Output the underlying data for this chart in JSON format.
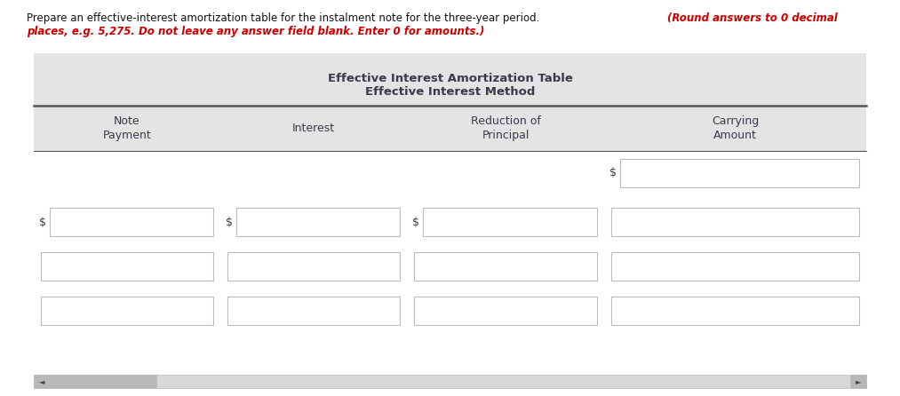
{
  "title_black": "Prepare an effective-interest amortization table for the instalment note for the three-year period.",
  "title_red": "(Round answers to 0 decimal places, e.g. 5,275. Do not leave any answer field blank. Enter 0 for amounts.)",
  "table_title_line1": "Effective Interest Amortization Table",
  "table_title_line2": "Effective Interest Method",
  "col_headers": [
    [
      "Note",
      "Payment"
    ],
    [
      "Interest"
    ],
    [
      "Reduction of",
      "Principal"
    ],
    [
      "Carrying",
      "Amount"
    ]
  ],
  "bg_color_header": "#e4e4e4",
  "bg_color_page": "#ffffff",
  "input_box_color": "#ffffff",
  "input_border_color": "#bbbbbb",
  "text_dark": "#3a3a4a",
  "text_black": "#111111",
  "text_red": "#cc0000",
  "line_color": "#555555",
  "scrollbar_bg": "#d8d8d8",
  "scrollbar_thumb": "#b8b8b8",
  "n_data_rows": 4,
  "dollar_pattern": [
    [
      false,
      false,
      false,
      true
    ],
    [
      true,
      true,
      true,
      false
    ],
    [
      false,
      false,
      false,
      false
    ],
    [
      false,
      false,
      false,
      false
    ]
  ],
  "show_cols": [
    [
      false,
      false,
      false,
      true
    ],
    [
      true,
      true,
      true,
      true
    ],
    [
      true,
      true,
      true,
      true
    ],
    [
      true,
      true,
      true,
      true
    ]
  ]
}
